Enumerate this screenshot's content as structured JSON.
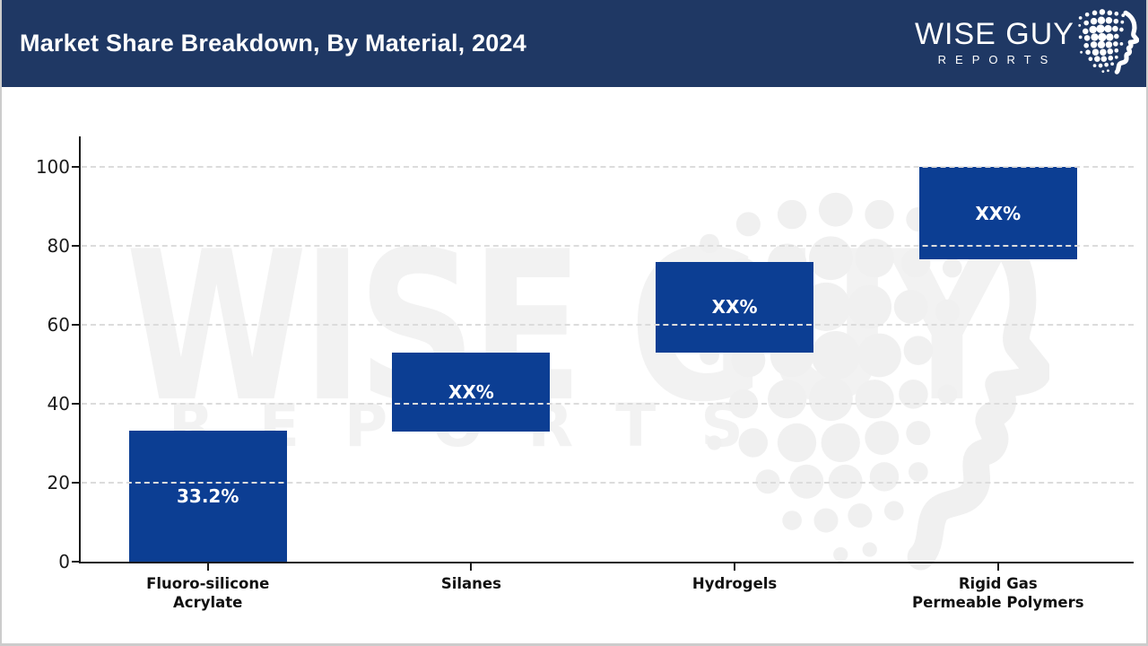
{
  "header": {
    "title": "Market Share Breakdown, By Material, 2024",
    "bg_color": "#1f3864",
    "logo": {
      "name": "WISE GUY",
      "sub": "REPORTS"
    }
  },
  "watermark": {
    "text": "WISE GUY",
    "sub": "REPORTS"
  },
  "chart_data": {
    "type": "bar",
    "subtype": "floating-waterfall",
    "title": "Market Share Breakdown, By Material, 2024",
    "xlabel": "",
    "ylabel": "",
    "categories": [
      "Fluoro-silicone Acrylate",
      "Silanes",
      "Hydrogels",
      "Rigid Gas Permeable Polymers"
    ],
    "category_lines": [
      [
        "Fluoro-silicone",
        "Acrylate"
      ],
      [
        "Silanes"
      ],
      [
        "Hydrogels"
      ],
      [
        "Rigid Gas",
        "Permeable Polymers"
      ]
    ],
    "segments": [
      {
        "category": "Fluoro-silicone Acrylate",
        "start": 0,
        "end": 33.2,
        "label": "33.2%"
      },
      {
        "category": "Silanes",
        "start": 33,
        "end": 53,
        "label": "XX%"
      },
      {
        "category": "Hydrogels",
        "start": 53,
        "end": 76,
        "label": "XX%"
      },
      {
        "category": "Rigid Gas Permeable Polymers",
        "start": 76.5,
        "end": 100,
        "label": "XX%"
      }
    ],
    "y_ticks": [
      0,
      20,
      40,
      60,
      80,
      100
    ],
    "ylim": [
      0,
      107
    ],
    "grid": "horizontal-dashed",
    "legend": "none",
    "bar_color": "#0c3e93",
    "bar_label_color": "#ffffff",
    "axis_color": "#1a1a1a",
    "grid_color": "#dcdcdc"
  }
}
